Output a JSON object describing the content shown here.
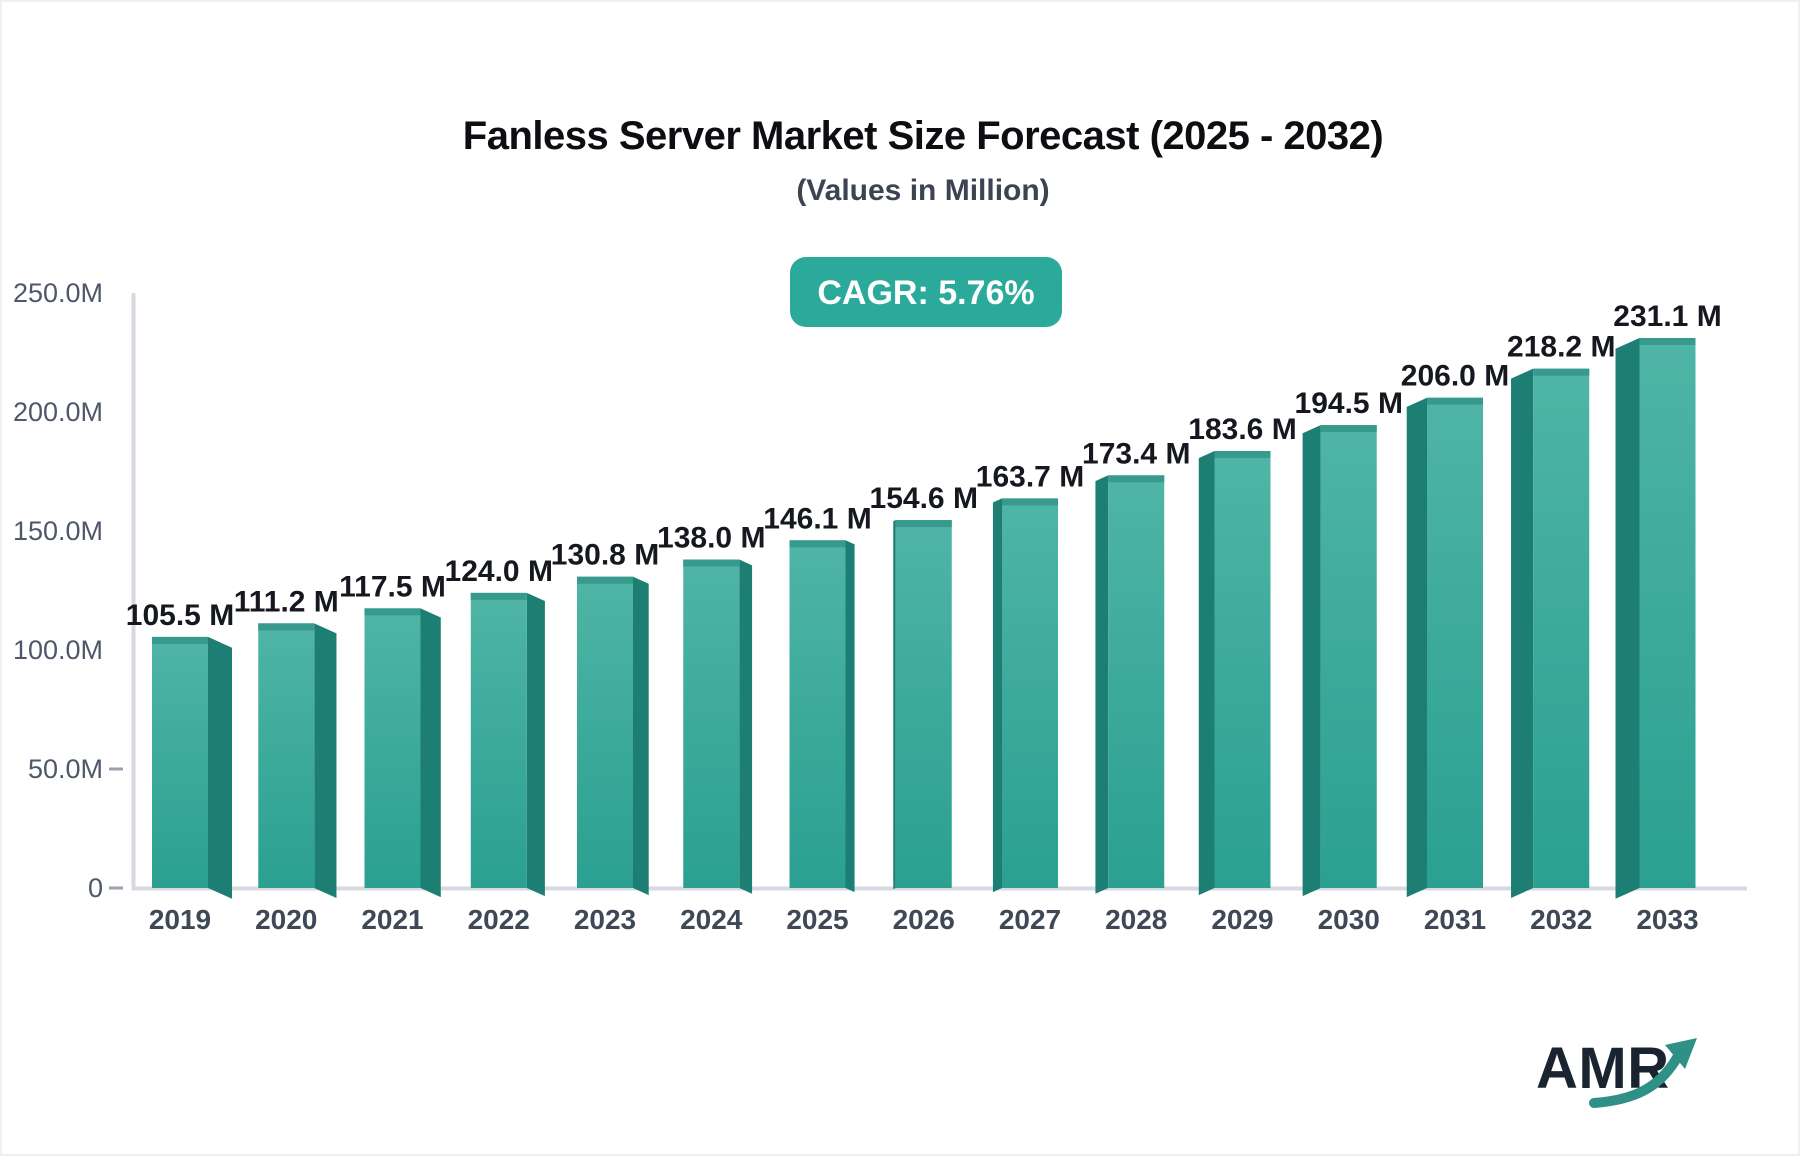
{
  "header": {
    "title": "Fanless Server Market Size Forecast (2025 - 2032)",
    "subtitle": "(Values in Million)",
    "cagr": "CAGR: 5.76%"
  },
  "logo": {
    "text": "AMR"
  },
  "chart_data": {
    "type": "bar",
    "title": "Fanless Server Market Size Forecast (2025 - 2032)",
    "subtitle": "(Values in Million)",
    "annotation": "CAGR: 5.76%",
    "categories": [
      "2019",
      "2020",
      "2021",
      "2022",
      "2023",
      "2024",
      "2025",
      "2026",
      "2027",
      "2028",
      "2029",
      "2030",
      "2031",
      "2032",
      "2033"
    ],
    "values": [
      105.5,
      111.2,
      117.5,
      124.0,
      130.8,
      138.0,
      146.1,
      154.6,
      163.7,
      173.4,
      183.6,
      194.5,
      206.0,
      218.2,
      231.1
    ],
    "value_suffix": " M",
    "xlabel": "",
    "ylabel": "",
    "ylim": [
      0,
      250
    ],
    "y_ticks": [
      "0",
      "50.0M",
      "100.0M",
      "150.0M",
      "200.0M",
      "250.0M"
    ],
    "grid": false,
    "legend": "none",
    "colors": {
      "bar_face_top": "#50b5a6",
      "bar_face_mid": "#3caa9b",
      "bar_face_bottom": "#2ba091",
      "bar_side": "#1d7e73",
      "bar_top": "#379a8c",
      "axis": "#d6d9df",
      "tick": "#9ba3ae",
      "badge_bg": "#2ba99b",
      "logo_arrow": "#2f9186"
    }
  }
}
